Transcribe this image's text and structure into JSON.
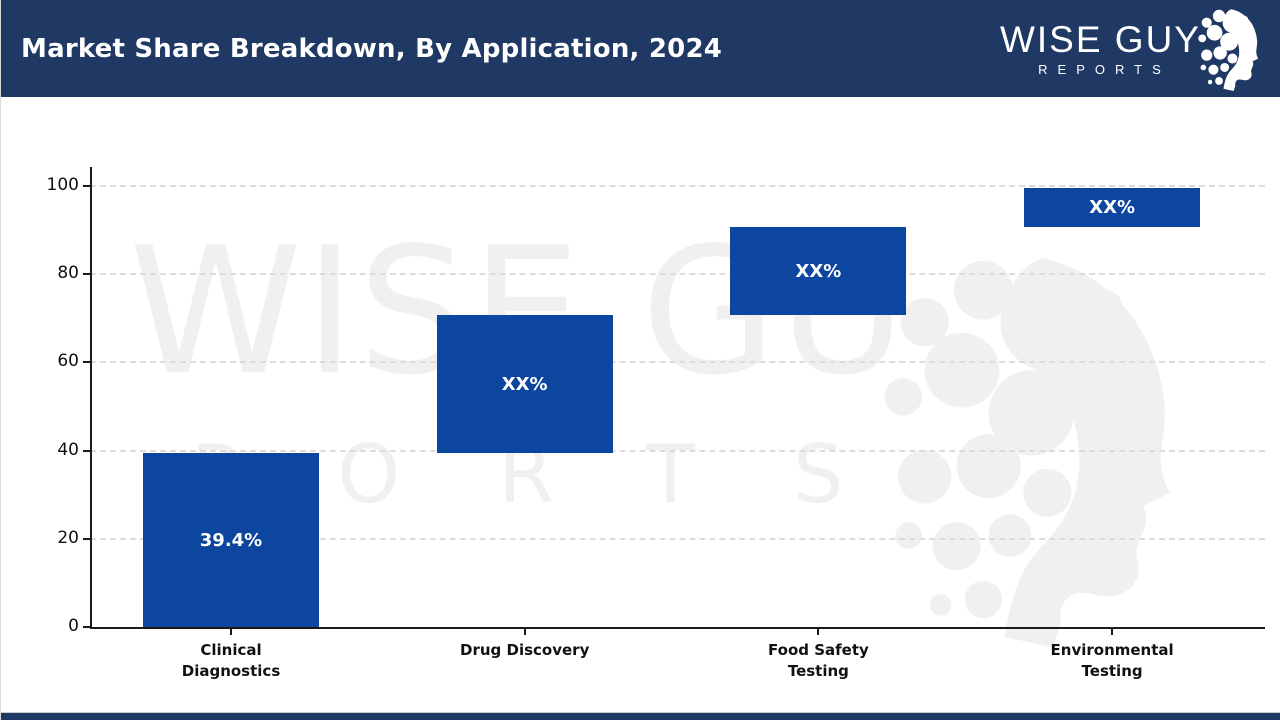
{
  "header": {
    "title": "Market Share Breakdown, By Application, 2024",
    "background": "#1f3864",
    "logo": {
      "line1": "WISE GUY",
      "line2": "REPORTS"
    }
  },
  "watermark": {
    "line1": "WISE GU",
    "line2": "PORTS"
  },
  "chart_data": {
    "type": "bar",
    "variant": "waterfall",
    "title": "Market Share Breakdown, By Application, 2024",
    "categories": [
      "Clinical Diagnostics",
      "Drug Discovery",
      "Food Safety Testing",
      "Environmental Testing"
    ],
    "bars": [
      {
        "category_label": "Clinical\nDiagnostics",
        "start": 0,
        "end": 39.4,
        "value": 39.4,
        "label": "39.4%"
      },
      {
        "category_label": "Drug Discovery",
        "start": 39.4,
        "end": 70.8,
        "value": 31.4,
        "label": "XX%"
      },
      {
        "category_label": "Food Safety\nTesting",
        "start": 70.8,
        "end": 90.6,
        "value": 19.8,
        "label": "XX%"
      },
      {
        "category_label": "Environmental\nTesting",
        "start": 90.6,
        "end": 99.5,
        "value": 8.9,
        "label": "XX%"
      }
    ],
    "xlabel": "",
    "ylabel": "",
    "ylim": [
      0,
      100
    ],
    "yticks": [
      0,
      20,
      40,
      60,
      80,
      100
    ],
    "grid": "horizontal-dashed",
    "legend": "none",
    "bar_color": "#0c469e",
    "bar_label_color": "#ffffff",
    "gridline_color": "#dcdcdc",
    "axis_color": "#1a1a1a"
  }
}
